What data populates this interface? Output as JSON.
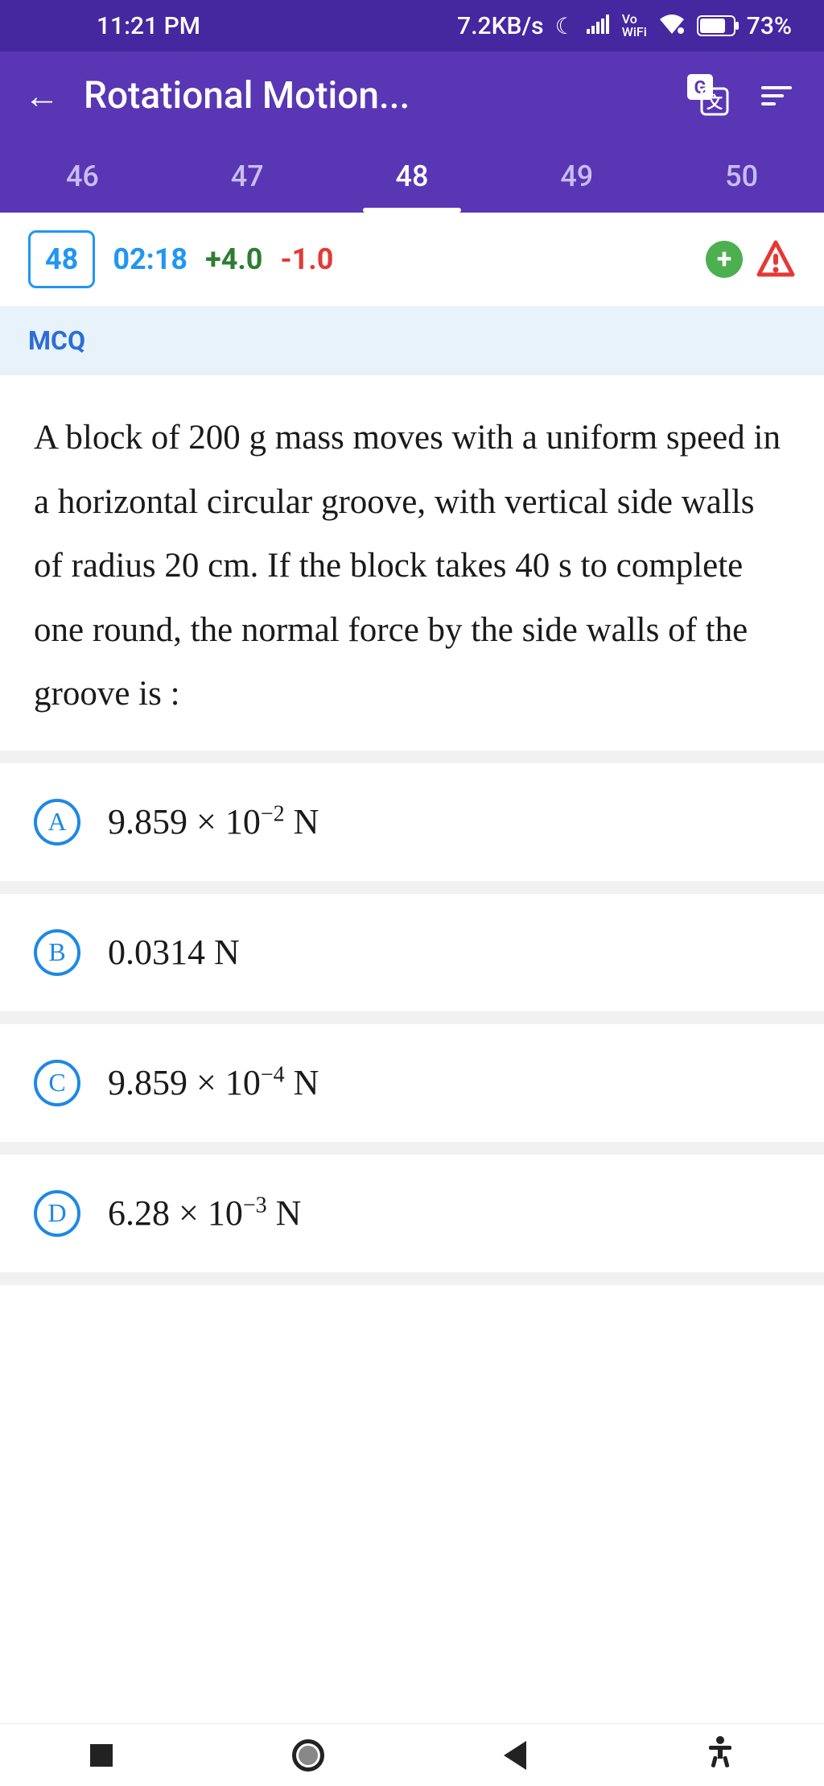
{
  "status": {
    "time": "11:21 PM",
    "speed": "7.2KB/s",
    "wifi_top": "Vo",
    "wifi_bot": "WiFi",
    "battery": "73%"
  },
  "appbar": {
    "title": "Rotational Motion..."
  },
  "tabs": [
    "46",
    "47",
    "48",
    "49",
    "50"
  ],
  "active_tab_index": 2,
  "info": {
    "number": "48",
    "timer": "02:18",
    "positive": "+4.0",
    "negative": "-1.0"
  },
  "mcq_label": "MCQ",
  "question": "A block of 200 g mass moves with a uniform speed in a horizontal circular groove, with vertical side walls of radius 20 cm. If the block takes 40 s to complete one round, the normal force by the side walls of the groove is :",
  "options": [
    {
      "mark": "A",
      "html": "9.859 × 10<sup>−2</sup> N"
    },
    {
      "mark": "B",
      "html": "0.0314 N"
    },
    {
      "mark": "C",
      "html": "9.859 × 10<sup>−4</sup> N"
    },
    {
      "mark": "D",
      "html": "6.28 × 10<sup>−3</sup> N"
    }
  ],
  "colors": {
    "statusbar_bg": "#4527a0",
    "appbar_bg": "#5936b4",
    "accent_blue": "#2196f3",
    "green": "#4caf50",
    "red": "#e53935",
    "mcq_bg": "#e8f2fb",
    "mcq_text": "#2c6ed5"
  }
}
